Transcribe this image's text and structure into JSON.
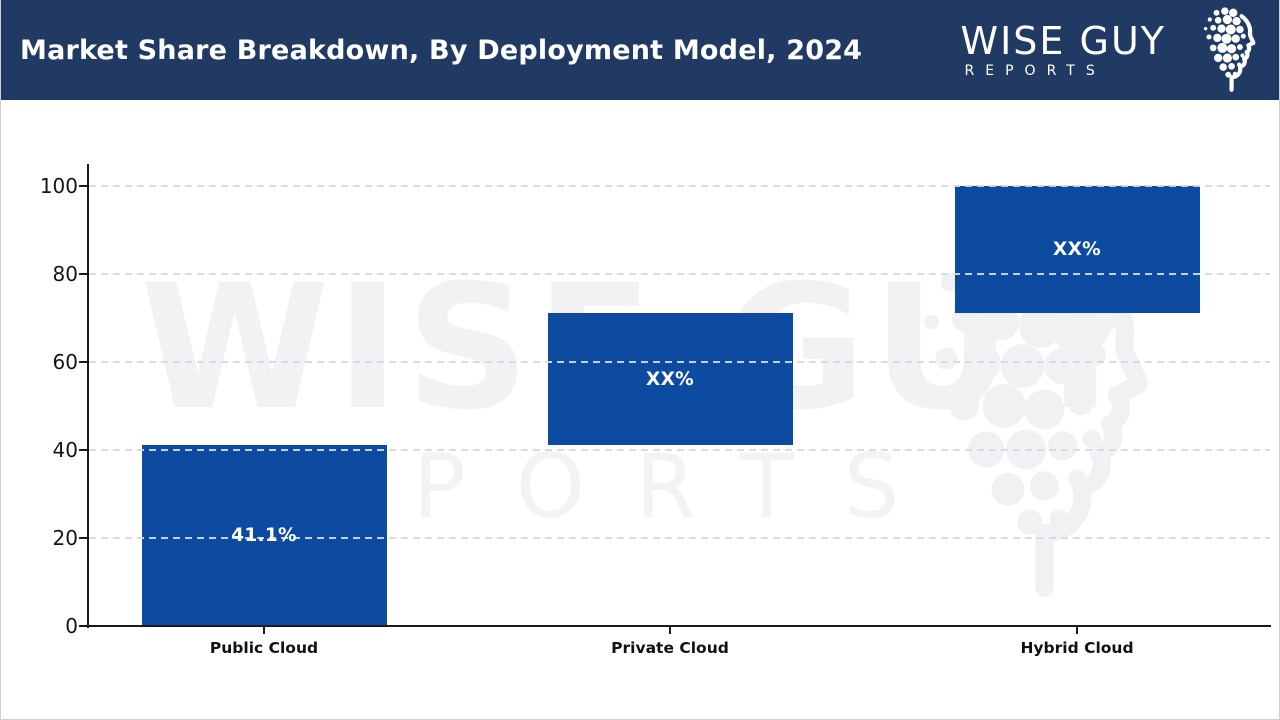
{
  "header": {
    "title": "Market Share Breakdown, By Deployment Model, 2024",
    "logo": {
      "line1": "WISE GUY",
      "line2": "REPORTS"
    }
  },
  "watermark": {
    "line1": "WISE GUY",
    "line2": "REPORTS"
  },
  "chart_data": {
    "type": "bar",
    "subtype": "floating-segment-waterfall",
    "title": "Market Share Breakdown, By Deployment Model, 2024",
    "categories": [
      "Public Cloud",
      "Private Cloud",
      "Hybrid Cloud"
    ],
    "segments": [
      {
        "category": "Public Cloud",
        "from": 0,
        "to": 41.1,
        "label": "41.1%"
      },
      {
        "category": "Private Cloud",
        "from": 41.1,
        "to": 71.1,
        "label": "XX%"
      },
      {
        "category": "Hybrid Cloud",
        "from": 71.1,
        "to": 100,
        "label": "XX%"
      }
    ],
    "xlabel": "",
    "ylabel": "",
    "ylim": [
      0,
      105
    ],
    "yticks": [
      0,
      20,
      40,
      60,
      80,
      100
    ],
    "grid": "horizontal-dashed",
    "legend": "none",
    "colors": {
      "bar": "#0c4ba0",
      "bar_label": "#ffffff",
      "header_bg": "#213a64",
      "axis": "#1a1a1a",
      "grid": "#d5d9e0",
      "watermark": "#f2f2f4"
    }
  }
}
